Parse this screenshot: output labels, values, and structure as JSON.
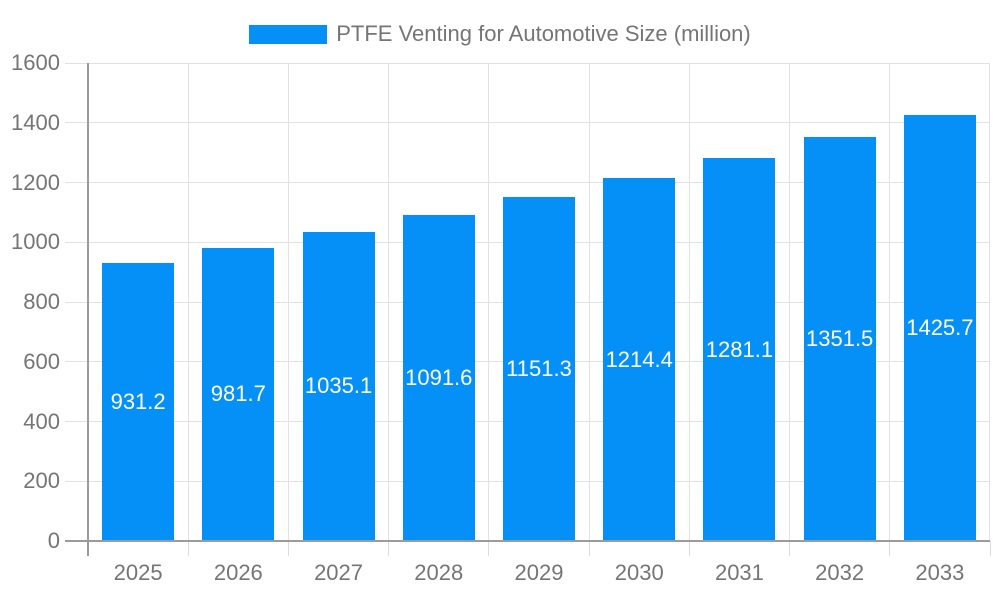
{
  "legend": {
    "label": "PTFE Venting for Automotive Size (million)"
  },
  "chart_data": {
    "type": "bar",
    "title": "PTFE Venting for Automotive Size (million)",
    "categories": [
      "2025",
      "2026",
      "2027",
      "2028",
      "2029",
      "2030",
      "2031",
      "2032",
      "2033"
    ],
    "series": [
      {
        "name": "PTFE Venting for Automotive Size (million)",
        "values": [
          931.2,
          981.7,
          1035.1,
          1091.6,
          1151.3,
          1214.4,
          1281.1,
          1351.5,
          1425.7
        ]
      }
    ],
    "value_labels": [
      "931.2",
      "981.7",
      "1035.1",
      "1091.6",
      "1151.3",
      "1214.4",
      "1281.1",
      "1351.5",
      "1425.7"
    ],
    "xlabel": "",
    "ylabel": "",
    "ylim": [
      0,
      1600
    ],
    "yticks": [
      0,
      200,
      400,
      600,
      800,
      1000,
      1200,
      1400,
      1600
    ],
    "grid": true,
    "legend_position": "top-center",
    "label_position": "inside-center",
    "colors": {
      "bar": "#0590F8",
      "bar_label_text": "#FFFFFF",
      "axis_text": "#757575",
      "axis_line": "#9B9B9B",
      "gridline": "#E2E2E2",
      "tick_line": "#DCDCDC",
      "background": "#FFFFFF"
    }
  }
}
